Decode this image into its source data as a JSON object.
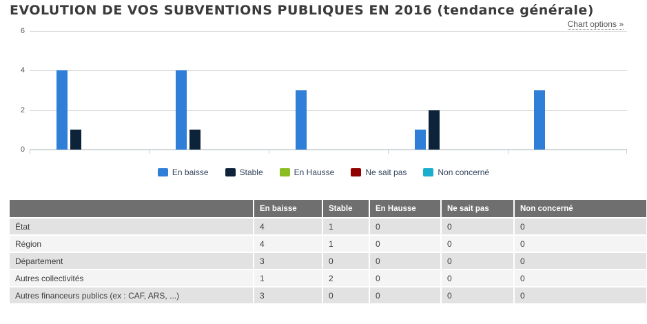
{
  "page": {
    "title": "EVOLUTION DE VOS SUBVENTIONS PUBLIQUES EN 2016 (tendance générale)",
    "chart_options_label": "Chart options »"
  },
  "chart_data": {
    "type": "bar",
    "title": "EVOLUTION DE VOS SUBVENTIONS PUBLIQUES EN 2016 (tendance générale)",
    "categories": [
      "État",
      "Région",
      "Département",
      "Autres collectivités",
      "Autres financeurs publics (ex : CAF, ARS, ...)"
    ],
    "series": [
      {
        "name": "En baisse",
        "color": "#2f7ed8",
        "values": [
          4,
          4,
          3,
          1,
          3
        ]
      },
      {
        "name": "Stable",
        "color": "#0d233a",
        "values": [
          1,
          1,
          0,
          2,
          0
        ]
      },
      {
        "name": "En Hausse",
        "color": "#8bbc21",
        "values": [
          0,
          0,
          0,
          0,
          0
        ]
      },
      {
        "name": "Ne sait pas",
        "color": "#910000",
        "values": [
          0,
          0,
          0,
          0,
          0
        ]
      },
      {
        "name": "Non concerné",
        "color": "#1aadce",
        "values": [
          0,
          0,
          0,
          0,
          0
        ]
      }
    ],
    "xlabel": "",
    "ylabel": "",
    "ylim": [
      0,
      6
    ],
    "yticks": [
      0,
      2,
      4,
      6
    ],
    "grid": true,
    "legend_position": "bottom",
    "x_axis_category_labels_visible": false
  },
  "table": {
    "columns": [
      "",
      "En baisse",
      "Stable",
      "En Hausse",
      "Ne sait pas",
      "Non concerné"
    ],
    "rows": [
      {
        "label": "État",
        "values": [
          4,
          1,
          0,
          0,
          0
        ]
      },
      {
        "label": "Région",
        "values": [
          4,
          1,
          0,
          0,
          0
        ]
      },
      {
        "label": "Département",
        "values": [
          3,
          0,
          0,
          0,
          0
        ]
      },
      {
        "label": "Autres collectivités",
        "values": [
          1,
          2,
          0,
          0,
          0
        ]
      },
      {
        "label": "Autres financeurs publics (ex : CAF, ARS, ...)",
        "values": [
          3,
          0,
          0,
          0,
          0
        ]
      }
    ]
  }
}
